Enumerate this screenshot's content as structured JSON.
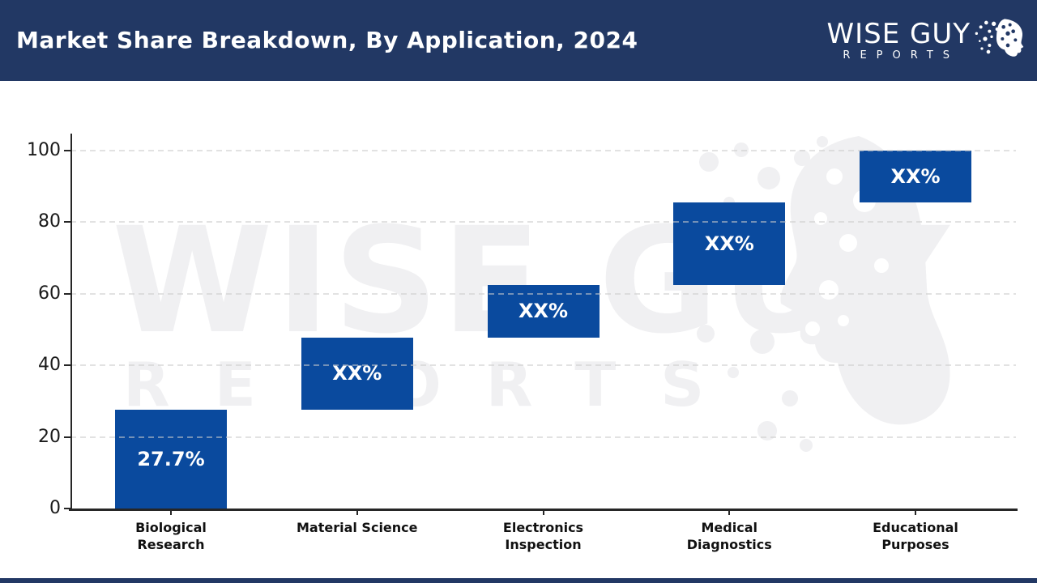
{
  "header": {
    "title": "Market Share Breakdown, By Application, 2024"
  },
  "logo": {
    "brand": "WISE GUY",
    "sub": "REPORTS"
  },
  "watermark": {
    "line1": "WISE GUY",
    "line2": "REPORTS"
  },
  "chart_data": {
    "type": "bar",
    "subtype": "floating-waterfall",
    "title": "Market Share Breakdown, By Application, 2024",
    "categories": [
      "Biological\nResearch",
      "Material Science",
      "Electronics\nInspection",
      "Medical\nDiagnostics",
      "Educational\nPurposes"
    ],
    "segments": [
      {
        "category": "Biological Research",
        "start": 0,
        "end": 27.7,
        "label": "27.7%"
      },
      {
        "category": "Material Science",
        "start": 27.7,
        "end": 47.7,
        "label": "XX%"
      },
      {
        "category": "Electronics Inspection",
        "start": 47.7,
        "end": 62.5,
        "label": "XX%"
      },
      {
        "category": "Medical Diagnostics",
        "start": 62.5,
        "end": 85.5,
        "label": "XX%"
      },
      {
        "category": "Educational Purposes",
        "start": 85.5,
        "end": 100,
        "label": "XX%"
      }
    ],
    "yticks": [
      0,
      20,
      40,
      60,
      80,
      100
    ],
    "ylim": [
      0,
      105
    ],
    "xlabel": "",
    "ylabel": "",
    "grid": "horizontal dashed",
    "legend": "none",
    "bar_color": "#0a4a9e",
    "bar_label_color": "#ffffff",
    "axis_color": "#262626",
    "header_bg": "#223864",
    "watermark_color": "#f0f0f2"
  }
}
